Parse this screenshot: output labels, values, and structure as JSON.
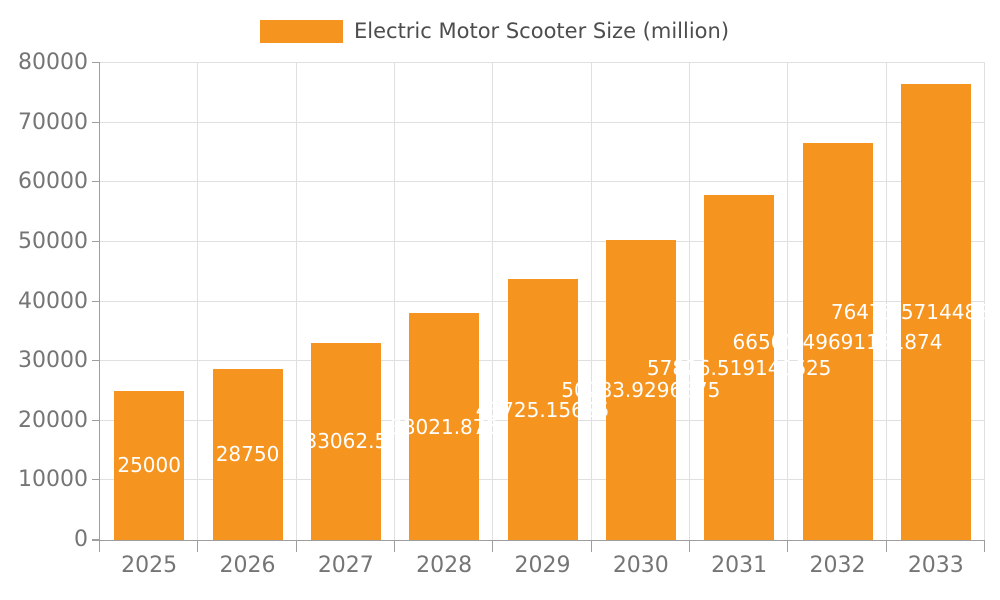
{
  "chart_data": {
    "type": "bar",
    "title": "Electric Motor Scooter Size (million)",
    "categories": [
      "2025",
      "2026",
      "2027",
      "2028",
      "2029",
      "2030",
      "2031",
      "2032",
      "2033"
    ],
    "values": [
      25000,
      28750,
      33062.5,
      38021.875,
      43725.15625,
      50283.9296875,
      57826.519140625,
      66500.49691121874,
      76475.57144889155
    ],
    "value_labels": [
      "25000",
      "28750",
      "33062.5",
      "38021.875",
      "43725.15625",
      "50283.9296875",
      "57826.519140625",
      "66500.49691121874",
      "76475.57144889155"
    ],
    "ylabel": "",
    "xlabel": "",
    "ylim": [
      0,
      80000
    ],
    "yticks": [
      0,
      10000,
      20000,
      30000,
      40000,
      50000,
      60000,
      70000,
      80000
    ],
    "ytick_labels": [
      "0",
      "10000",
      "20000",
      "30000",
      "40000",
      "50000",
      "60000",
      "70000",
      "80000"
    ],
    "grid": true,
    "legend_position": "top",
    "colors": {
      "bar": "#F5941E",
      "axis": "#9e9e9e",
      "grid": "#e0e0e0",
      "tick_label": "#757575",
      "legend_text": "#4d4d4d",
      "value_label": "#ffffff"
    }
  }
}
